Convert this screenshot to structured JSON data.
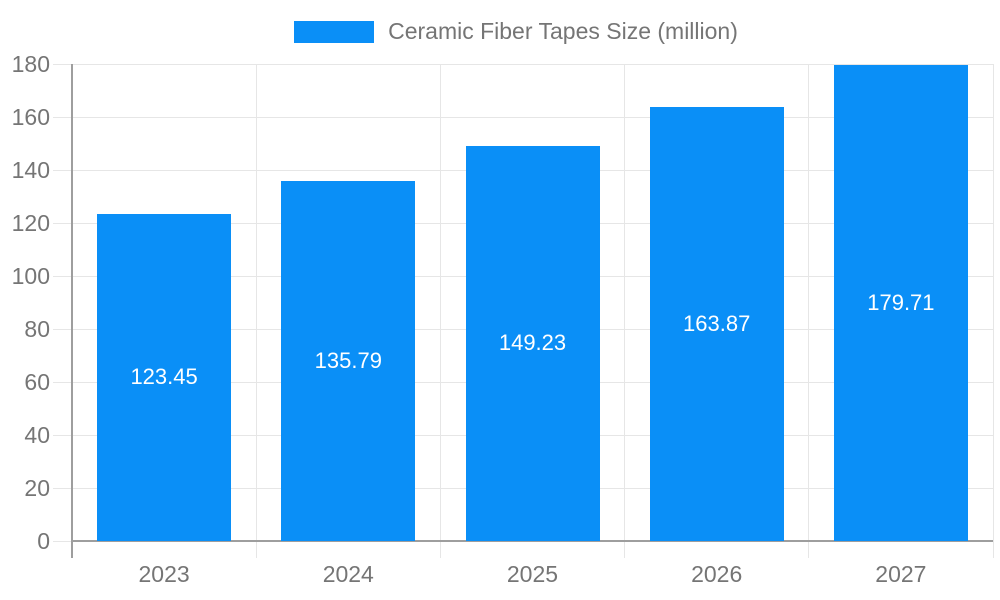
{
  "chart_data": {
    "type": "bar",
    "title": "Ceramic Fiber Tapes Size (million)",
    "categories": [
      "2023",
      "2024",
      "2025",
      "2026",
      "2027"
    ],
    "values": [
      123.45,
      135.79,
      149.23,
      163.87,
      179.71
    ],
    "value_labels": [
      "123.45",
      "135.79",
      "149.23",
      "163.87",
      "179.71"
    ],
    "xlabel": "",
    "ylabel": "",
    "ylim": [
      0,
      180
    ],
    "ytick_step": 20,
    "ytick_labels": [
      "0",
      "20",
      "40",
      "60",
      "80",
      "100",
      "120",
      "140",
      "160",
      "180"
    ],
    "grid": true,
    "legend_position": "top",
    "colors": {
      "bar": "#0a8ff7",
      "grid": "#e6e6e6",
      "axis_line": "#9e9e9e",
      "axis_text": "#757575",
      "value_text": "#ffffff",
      "background": "#ffffff"
    }
  }
}
